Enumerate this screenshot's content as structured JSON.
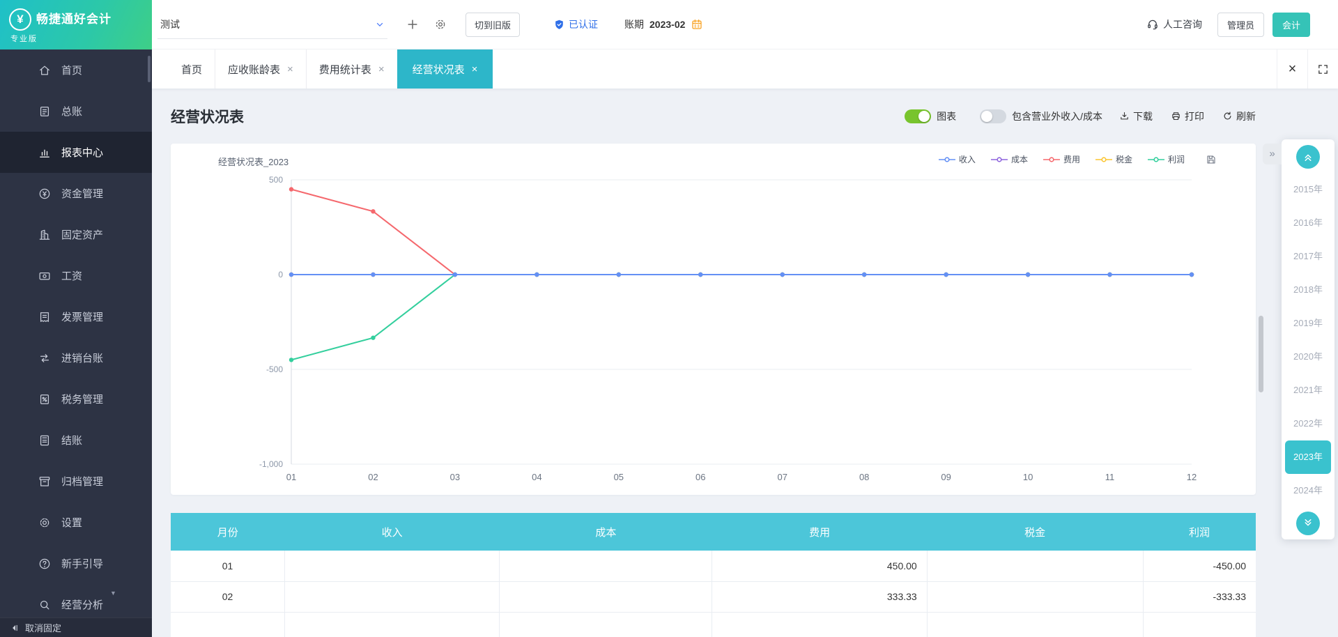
{
  "theme": {
    "accent_teal": "#2db6c9",
    "table_header_teal": "#4cc6d9",
    "sidebar_bg": "#2d3344",
    "toggle_on_green": "#78c42d",
    "certified_blue": "#2f6fe8",
    "calendar_amber": "#f8a01e"
  },
  "app": {
    "logo_title": "畅捷通好会计",
    "logo_subtitle": "专业版",
    "logo_glyph": "¥"
  },
  "sidebar": {
    "items": [
      {
        "label": "首页",
        "icon": "home-icon",
        "active": false
      },
      {
        "label": "总账",
        "icon": "ledger-icon",
        "active": false
      },
      {
        "label": "报表中心",
        "icon": "report-icon",
        "active": true
      },
      {
        "label": "资金管理",
        "icon": "fund-icon",
        "active": false
      },
      {
        "label": "固定资产",
        "icon": "asset-icon",
        "active": false
      },
      {
        "label": "工资",
        "icon": "salary-icon",
        "active": false
      },
      {
        "label": "发票管理",
        "icon": "invoice-icon",
        "active": false
      },
      {
        "label": "进销台账",
        "icon": "inout-icon",
        "active": false
      },
      {
        "label": "税务管理",
        "icon": "tax-icon",
        "active": false
      },
      {
        "label": "结账",
        "icon": "closing-icon",
        "active": false
      },
      {
        "label": "归档管理",
        "icon": "archive-icon",
        "active": false
      },
      {
        "label": "设置",
        "icon": "gear-icon",
        "active": false
      },
      {
        "label": "新手引导",
        "icon": "guide-icon",
        "active": false
      },
      {
        "label": "经营分析",
        "icon": "analysis-icon",
        "active": false
      }
    ],
    "footer_label": "取消固定"
  },
  "topbar": {
    "account_set": "测试",
    "switch_old": "切到旧版",
    "certified": "已认证",
    "period_label": "账期",
    "period_value": "2023-02",
    "support": "人工咨询",
    "admin": "管理员",
    "accountant": "会计"
  },
  "tabs": [
    {
      "label": "首页",
      "closable": false,
      "active": false
    },
    {
      "label": "应收账龄表",
      "closable": true,
      "active": false
    },
    {
      "label": "费用统计表",
      "closable": true,
      "active": false
    },
    {
      "label": "经营状况表",
      "closable": true,
      "active": true
    }
  ],
  "page": {
    "title": "经营状况表",
    "chart_toggle": "图表",
    "include_toggle": "包含营业外收入/成本",
    "download": "下载",
    "print": "打印",
    "refresh": "刷新"
  },
  "chart_data": {
    "type": "line",
    "title": "经营状况表_2023",
    "x": [
      "01",
      "02",
      "03",
      "04",
      "05",
      "06",
      "07",
      "08",
      "09",
      "10",
      "11",
      "12"
    ],
    "y_ticks": [
      500,
      0,
      -500,
      -1000
    ],
    "ylim": [
      -1000,
      500
    ],
    "grid": true,
    "legend_position": "top-right",
    "series": [
      {
        "name": "收入",
        "color": "#6490f5",
        "values": [
          0,
          0,
          0,
          0,
          0,
          0,
          0,
          0,
          0,
          0,
          0,
          0
        ]
      },
      {
        "name": "成本",
        "color": "#8d64dd",
        "values": [
          0,
          0,
          0,
          0,
          0,
          0,
          0,
          0,
          0,
          0,
          0,
          0
        ]
      },
      {
        "name": "费用",
        "color": "#f5686d",
        "values": [
          450,
          333.33,
          0,
          0,
          0,
          0,
          0,
          0,
          0,
          0,
          0,
          0
        ]
      },
      {
        "name": "税金",
        "color": "#fbc531",
        "values": [
          0,
          0,
          0,
          0,
          0,
          0,
          0,
          0,
          0,
          0,
          0,
          0
        ]
      },
      {
        "name": "利润",
        "color": "#33cf9d",
        "values": [
          -450,
          -333.33,
          0,
          0,
          0,
          0,
          0,
          0,
          0,
          0,
          0,
          0
        ]
      }
    ]
  },
  "years": {
    "items": [
      "2015年",
      "2016年",
      "2017年",
      "2018年",
      "2019年",
      "2020年",
      "2021年",
      "2022年",
      "2023年",
      "2024年"
    ],
    "selected": "2023年"
  },
  "table": {
    "headers": [
      "月份",
      "收入",
      "成本",
      "费用",
      "税金",
      "利润"
    ],
    "rows": [
      {
        "cells": [
          "01",
          "",
          "",
          "450.00",
          "",
          "-450.00"
        ]
      },
      {
        "cells": [
          "02",
          "",
          "",
          "333.33",
          "",
          "-333.33"
        ]
      }
    ]
  }
}
